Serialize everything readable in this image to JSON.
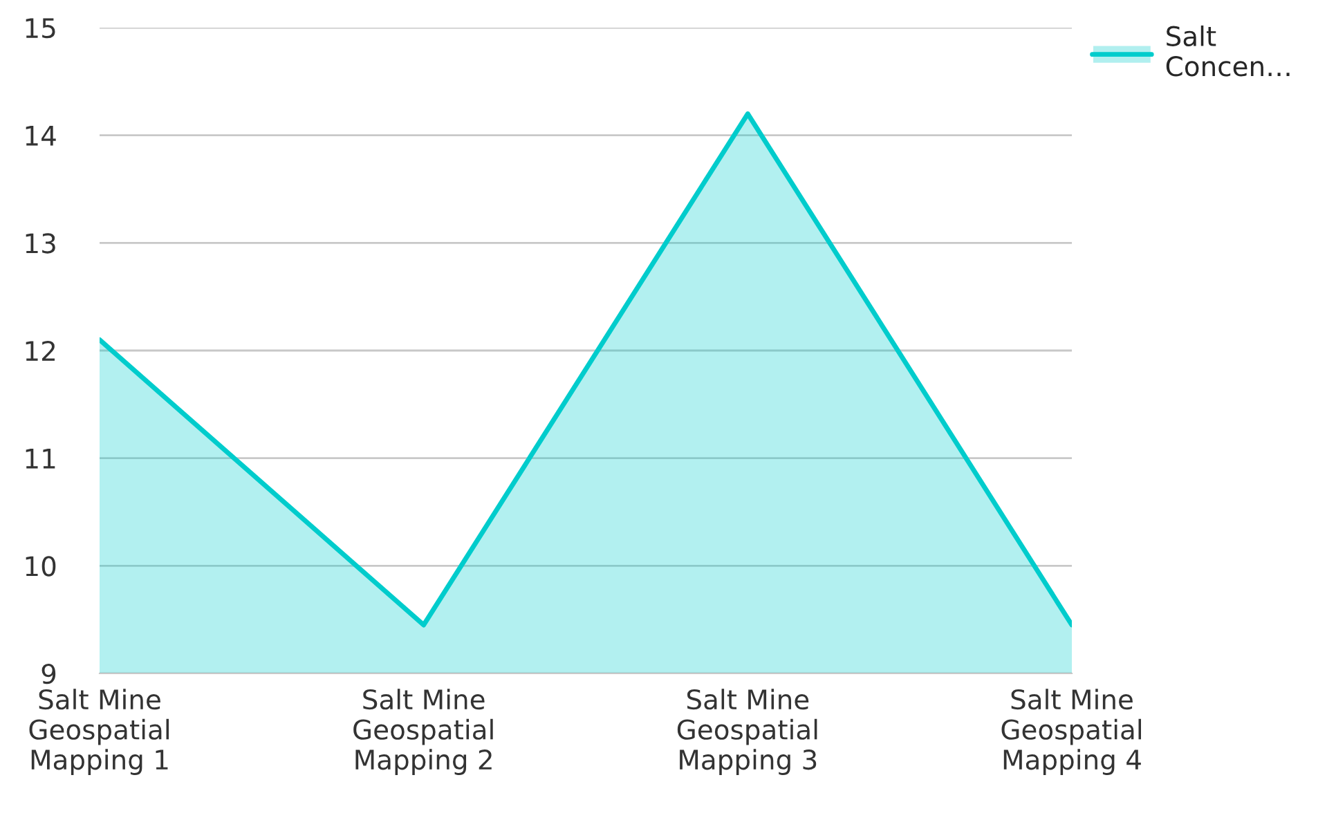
{
  "chart_data": {
    "type": "area",
    "categories": [
      "Salt Mine\nGeospatial\nMapping 1",
      "Salt Mine\nGeospatial\nMapping 2",
      "Salt Mine\nGeospatial\nMapping 3",
      "Salt Mine\nGeospatial\nMapping 4"
    ],
    "series": [
      {
        "name": "Salt\nConcen…",
        "color": "#00cccc",
        "values": [
          12.1,
          9.45,
          14.2,
          9.45
        ]
      }
    ],
    "ylim": [
      9,
      15
    ],
    "yticks": [
      9,
      10,
      11,
      12,
      13,
      14,
      15
    ],
    "grid": "y",
    "legend": "top right"
  }
}
